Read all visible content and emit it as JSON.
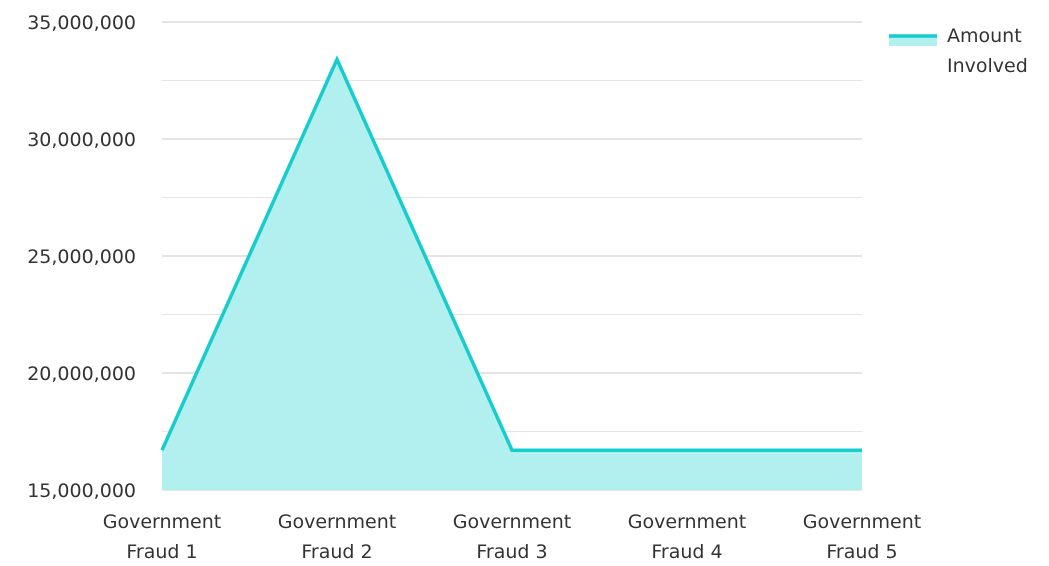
{
  "chart_data": {
    "type": "area",
    "categories": [
      "Government Fraud 1",
      "Government Fraud 2",
      "Government Fraud 3",
      "Government Fraud 4",
      "Government Fraud 5"
    ],
    "category_lines": [
      [
        "Government",
        "Fraud 1"
      ],
      [
        "Government",
        "Fraud 2"
      ],
      [
        "Government",
        "Fraud 3"
      ],
      [
        "Government",
        "Fraud 4"
      ],
      [
        "Government",
        "Fraud 5"
      ]
    ],
    "series": [
      {
        "name": "Amount Involved",
        "name_lines": [
          "Amount",
          "Involved"
        ],
        "values": [
          16700000,
          33400000,
          16700000,
          16700000,
          16700000
        ]
      }
    ],
    "y_ticks": [
      15000000,
      20000000,
      25000000,
      30000000,
      35000000
    ],
    "y_tick_labels": [
      "15,000,000",
      "20,000,000",
      "25,000,000",
      "30,000,000",
      "35,000,000"
    ],
    "ylim": [
      15000000,
      35000000
    ],
    "title": "",
    "xlabel": "",
    "ylabel": "",
    "grid": true,
    "legend_position": "top-right",
    "colors": {
      "line": "#17cccc",
      "fill": "#b2efef",
      "grid": "#c8c8c8",
      "minor_grid": "#e6e6e6",
      "text": "#333333"
    }
  }
}
